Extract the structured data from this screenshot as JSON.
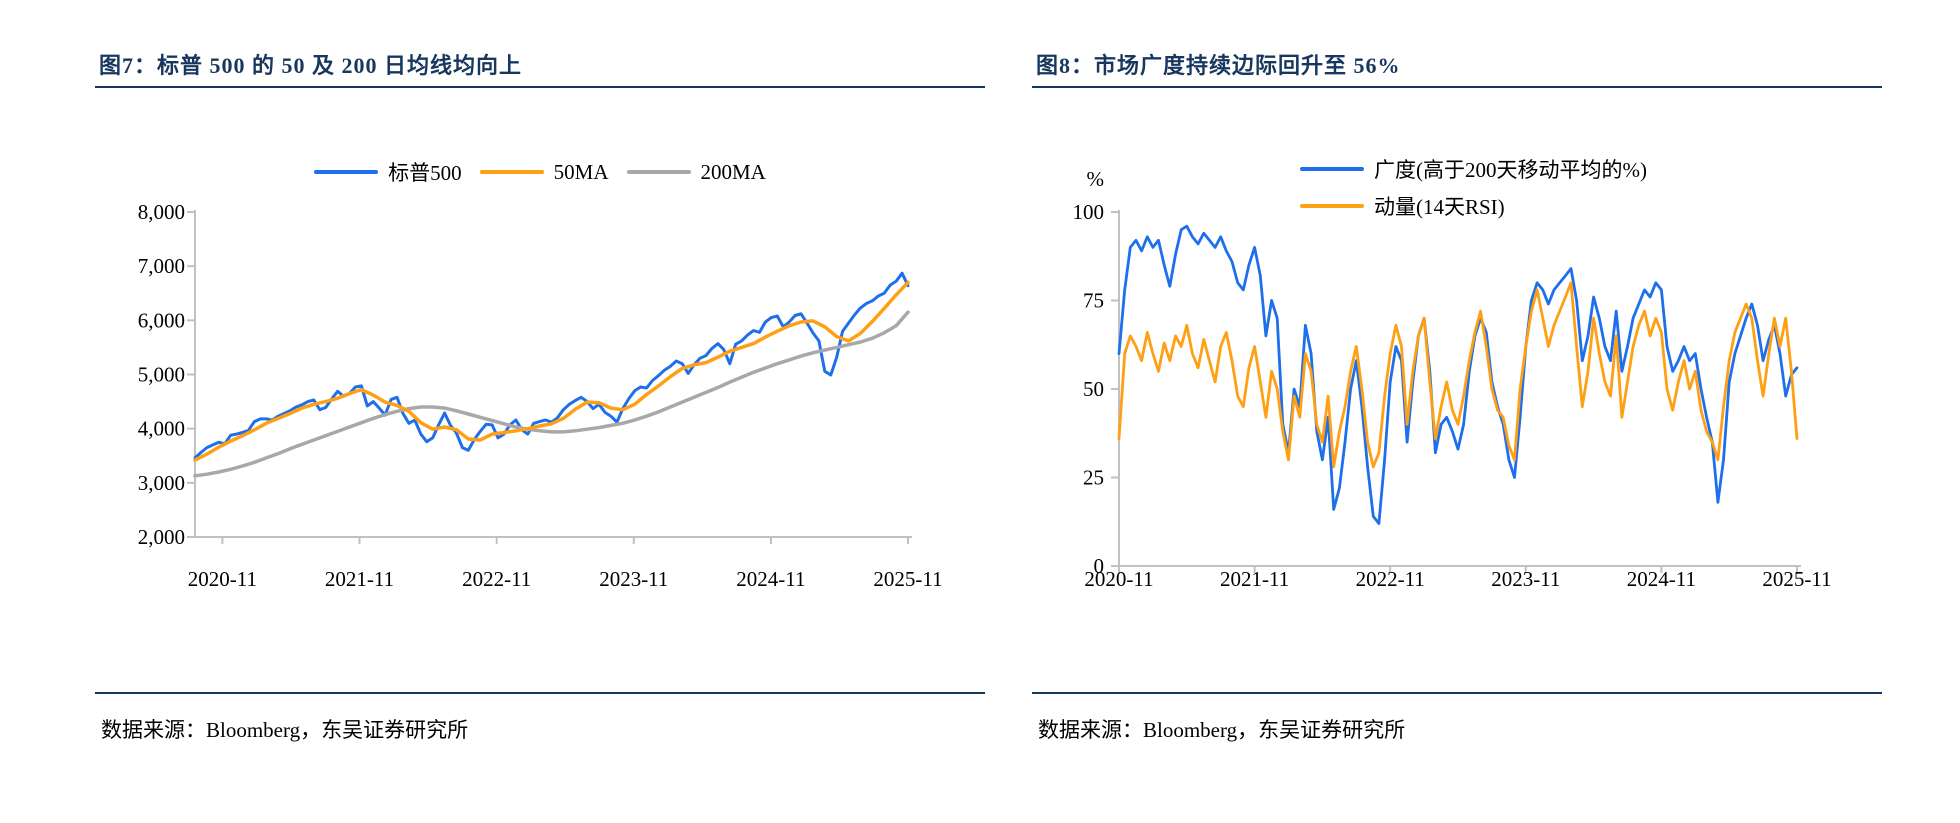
{
  "page": {
    "background": "#ffffff"
  },
  "figures": [
    {
      "id": "fig7",
      "title": "图7：标普 500 的 50 及 200 日均线均向上",
      "source": "数据来源：Bloomberg，东吴证券研究所"
    },
    {
      "id": "fig8",
      "title": "图8：市场广度持续边际回升至 56%",
      "source": "数据来源：Bloomberg，东吴证券研究所"
    }
  ],
  "colors": {
    "title_navy": "#17375E",
    "axis_gray": "#C1C1C1",
    "blue": "#1E6FEB",
    "orange": "#FFA014",
    "gray": "#A8A8A8"
  },
  "chart_data": [
    {
      "type": "line",
      "title": "图7：标普 500 的 50 及 200 日均线均向上",
      "xlabel": "",
      "ylabel": "",
      "x_tick_labels": [
        "2020-11",
        "2021-11",
        "2022-11",
        "2023-11",
        "2024-11",
        "2025-11"
      ],
      "y_tick_labels": [
        "2,000",
        "3,000",
        "4,000",
        "5,000",
        "6,000",
        "7,000",
        "8,000"
      ],
      "y_ticks": [
        2000,
        3000,
        4000,
        5000,
        6000,
        7000,
        8000
      ],
      "ylim": [
        2000,
        8000
      ],
      "grid": false,
      "legend_position": "top-center",
      "series": [
        {
          "name": "标普500",
          "color": "#1E6FEB",
          "width": 3,
          "values": [
            3460,
            3560,
            3650,
            3700,
            3750,
            3720,
            3880,
            3900,
            3930,
            3970,
            4130,
            4180,
            4180,
            4160,
            4230,
            4280,
            4330,
            4400,
            4440,
            4500,
            4530,
            4350,
            4390,
            4550,
            4690,
            4600,
            4650,
            4770,
            4790,
            4420,
            4500,
            4380,
            4250,
            4540,
            4580,
            4280,
            4100,
            4160,
            3900,
            3760,
            3830,
            4070,
            4290,
            4060,
            3920,
            3650,
            3600,
            3800,
            3950,
            4080,
            4070,
            3830,
            3900,
            4070,
            4160,
            3980,
            3900,
            4100,
            4130,
            4160,
            4120,
            4200,
            4350,
            4450,
            4520,
            4580,
            4500,
            4370,
            4450,
            4300,
            4230,
            4120,
            4370,
            4550,
            4700,
            4770,
            4750,
            4890,
            4980,
            5080,
            5150,
            5250,
            5200,
            5020,
            5180,
            5300,
            5350,
            5480,
            5570,
            5460,
            5200,
            5560,
            5620,
            5730,
            5810,
            5780,
            5970,
            6050,
            6080,
            5880,
            5970,
            6090,
            6120,
            5950,
            5770,
            5620,
            5060,
            4990,
            5320,
            5800,
            5950,
            6100,
            6230,
            6310,
            6360,
            6450,
            6500,
            6650,
            6720,
            6870,
            6640
          ]
        },
        {
          "name": "50MA",
          "color": "#FFA014",
          "width": 3.5,
          "values": [
            3420,
            3530,
            3660,
            3770,
            3870,
            3980,
            4100,
            4190,
            4280,
            4380,
            4450,
            4500,
            4560,
            4650,
            4720,
            4620,
            4490,
            4430,
            4320,
            4110,
            3990,
            4030,
            3980,
            3810,
            3790,
            3900,
            3930,
            3960,
            4000,
            4050,
            4090,
            4190,
            4360,
            4490,
            4480,
            4380,
            4350,
            4450,
            4630,
            4790,
            4960,
            5110,
            5180,
            5220,
            5320,
            5430,
            5500,
            5570,
            5690,
            5800,
            5900,
            5970,
            5990,
            5880,
            5700,
            5620,
            5760,
            5980,
            6220,
            6470,
            6700
          ]
        },
        {
          "name": "200MA",
          "color": "#A8A8A8",
          "width": 3.5,
          "values": [
            3130,
            3160,
            3200,
            3250,
            3310,
            3380,
            3460,
            3540,
            3630,
            3710,
            3790,
            3870,
            3950,
            4030,
            4110,
            4190,
            4260,
            4320,
            4370,
            4400,
            4400,
            4380,
            4330,
            4270,
            4210,
            4150,
            4090,
            4030,
            3990,
            3960,
            3940,
            3940,
            3960,
            3990,
            4020,
            4060,
            4100,
            4160,
            4230,
            4310,
            4400,
            4490,
            4580,
            4670,
            4760,
            4860,
            4950,
            5040,
            5120,
            5200,
            5270,
            5340,
            5400,
            5450,
            5500,
            5550,
            5600,
            5670,
            5770,
            5900,
            6150
          ]
        }
      ]
    },
    {
      "type": "line",
      "title": "图8：市场广度持续边际回升至 56%",
      "xlabel": "",
      "ylabel": "%",
      "y_axis_unit": "%",
      "x_tick_labels": [
        "2020-11",
        "2021-11",
        "2022-11",
        "2023-11",
        "2024-11",
        "2025-11"
      ],
      "y_tick_labels": [
        "0",
        "25",
        "50",
        "75",
        "100"
      ],
      "y_ticks": [
        0,
        25,
        50,
        75,
        100
      ],
      "ylim": [
        0,
        100
      ],
      "grid": false,
      "legend_position": "top-right",
      "series": [
        {
          "name": "广度(高于200天移动平均的%)",
          "color": "#1E6FEB",
          "width": 2.8,
          "values": [
            60,
            78,
            90,
            92,
            89,
            93,
            90,
            92,
            85,
            79,
            88,
            95,
            96,
            93,
            91,
            94,
            92,
            90,
            93,
            89,
            86,
            80,
            78,
            85,
            90,
            82,
            65,
            75,
            70,
            40,
            32,
            50,
            45,
            68,
            60,
            38,
            30,
            42,
            16,
            22,
            35,
            50,
            58,
            45,
            28,
            14,
            12,
            30,
            52,
            62,
            58,
            35,
            52,
            65,
            70,
            55,
            32,
            40,
            42,
            38,
            33,
            40,
            55,
            65,
            70,
            66,
            52,
            45,
            40,
            30,
            25,
            42,
            62,
            75,
            80,
            78,
            74,
            78,
            80,
            82,
            84,
            75,
            58,
            65,
            76,
            70,
            62,
            58,
            72,
            55,
            62,
            70,
            74,
            78,
            76,
            80,
            78,
            62,
            55,
            58,
            62,
            58,
            60,
            50,
            42,
            35,
            18,
            30,
            52,
            60,
            65,
            70,
            74,
            68,
            58,
            64,
            68,
            60,
            48,
            54,
            56
          ]
        },
        {
          "name": "动量(14天RSI)",
          "color": "#FFA014",
          "width": 2.8,
          "values": [
            36,
            60,
            65,
            62,
            58,
            66,
            60,
            55,
            63,
            58,
            65,
            62,
            68,
            60,
            56,
            64,
            58,
            52,
            62,
            66,
            58,
            48,
            45,
            56,
            62,
            52,
            42,
            55,
            50,
            38,
            30,
            48,
            42,
            60,
            55,
            40,
            35,
            48,
            28,
            38,
            45,
            55,
            62,
            50,
            35,
            28,
            32,
            48,
            60,
            68,
            62,
            40,
            55,
            65,
            70,
            52,
            36,
            45,
            52,
            44,
            40,
            48,
            58,
            66,
            72,
            62,
            50,
            44,
            42,
            34,
            30,
            50,
            62,
            72,
            78,
            70,
            62,
            68,
            72,
            76,
            80,
            62,
            45,
            55,
            70,
            60,
            52,
            48,
            65,
            42,
            52,
            62,
            68,
            72,
            65,
            70,
            66,
            50,
            44,
            52,
            58,
            50,
            55,
            44,
            38,
            35,
            30,
            45,
            58,
            66,
            70,
            74,
            70,
            58,
            48,
            60,
            70,
            62,
            70,
            55,
            36
          ]
        }
      ]
    }
  ]
}
